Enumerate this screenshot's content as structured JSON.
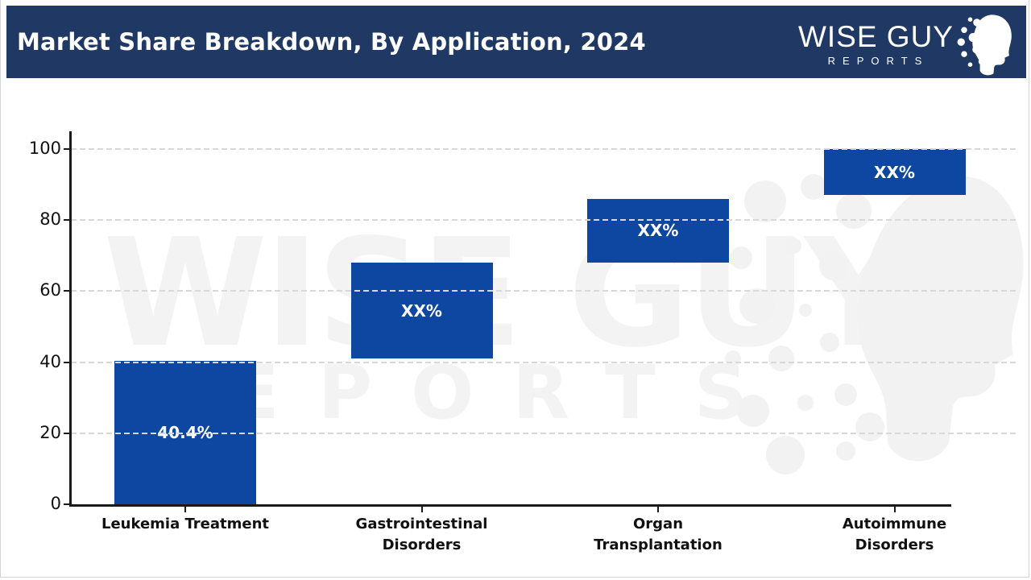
{
  "header": {
    "title": "Market Share Breakdown, By Application, 2024",
    "logo": {
      "name_line": "WISE GUY",
      "reports_line": "REPORTS"
    }
  },
  "watermark": {
    "name_line": "WISE GUY",
    "reports_line": "REPORTS"
  },
  "colors": {
    "header_bg": "#1f3864",
    "bar": "#0d47a1",
    "grid": "#d8d8d8",
    "axis": "#1a1a1a",
    "bar_label": "#ffffff",
    "watermark": "#f3f3f3",
    "frame": "#d4d4d4"
  },
  "chart_data": {
    "type": "bar",
    "subtype": "waterfall (floating segment bars)",
    "title": "Market Share Breakdown, By Application, 2024",
    "unit": "percent",
    "categories": [
      "Leukemia Treatment",
      "Gastrointestinal Disorders",
      "Organ Transplantation",
      "Autoimmune Disorders"
    ],
    "category_label_lines": [
      [
        "Leukemia Treatment"
      ],
      [
        "Gastrointestinal",
        "Disorders"
      ],
      [
        "Organ",
        "Transplantation"
      ],
      [
        "Autoimmune",
        "Disorders"
      ]
    ],
    "bars": [
      {
        "category": "Leukemia Treatment",
        "start": 0,
        "end": 40.4,
        "label": "40.4%"
      },
      {
        "category": "Gastrointestinal Disorders",
        "start": 41,
        "end": 68,
        "label": "XX%"
      },
      {
        "category": "Organ Transplantation",
        "start": 68,
        "end": 86,
        "label": "XX%"
      },
      {
        "category": "Autoimmune Disorders",
        "start": 87,
        "end": 100,
        "label": "XX%"
      }
    ],
    "yticks": [
      0,
      20,
      40,
      60,
      80,
      100
    ],
    "ylim": [
      0,
      105
    ],
    "xlabel": "",
    "ylabel": "",
    "grid": {
      "horizontal": true,
      "style": "dashed",
      "drawn_over_bars": true
    },
    "legend": null,
    "bar_color": "#0d47a1"
  }
}
